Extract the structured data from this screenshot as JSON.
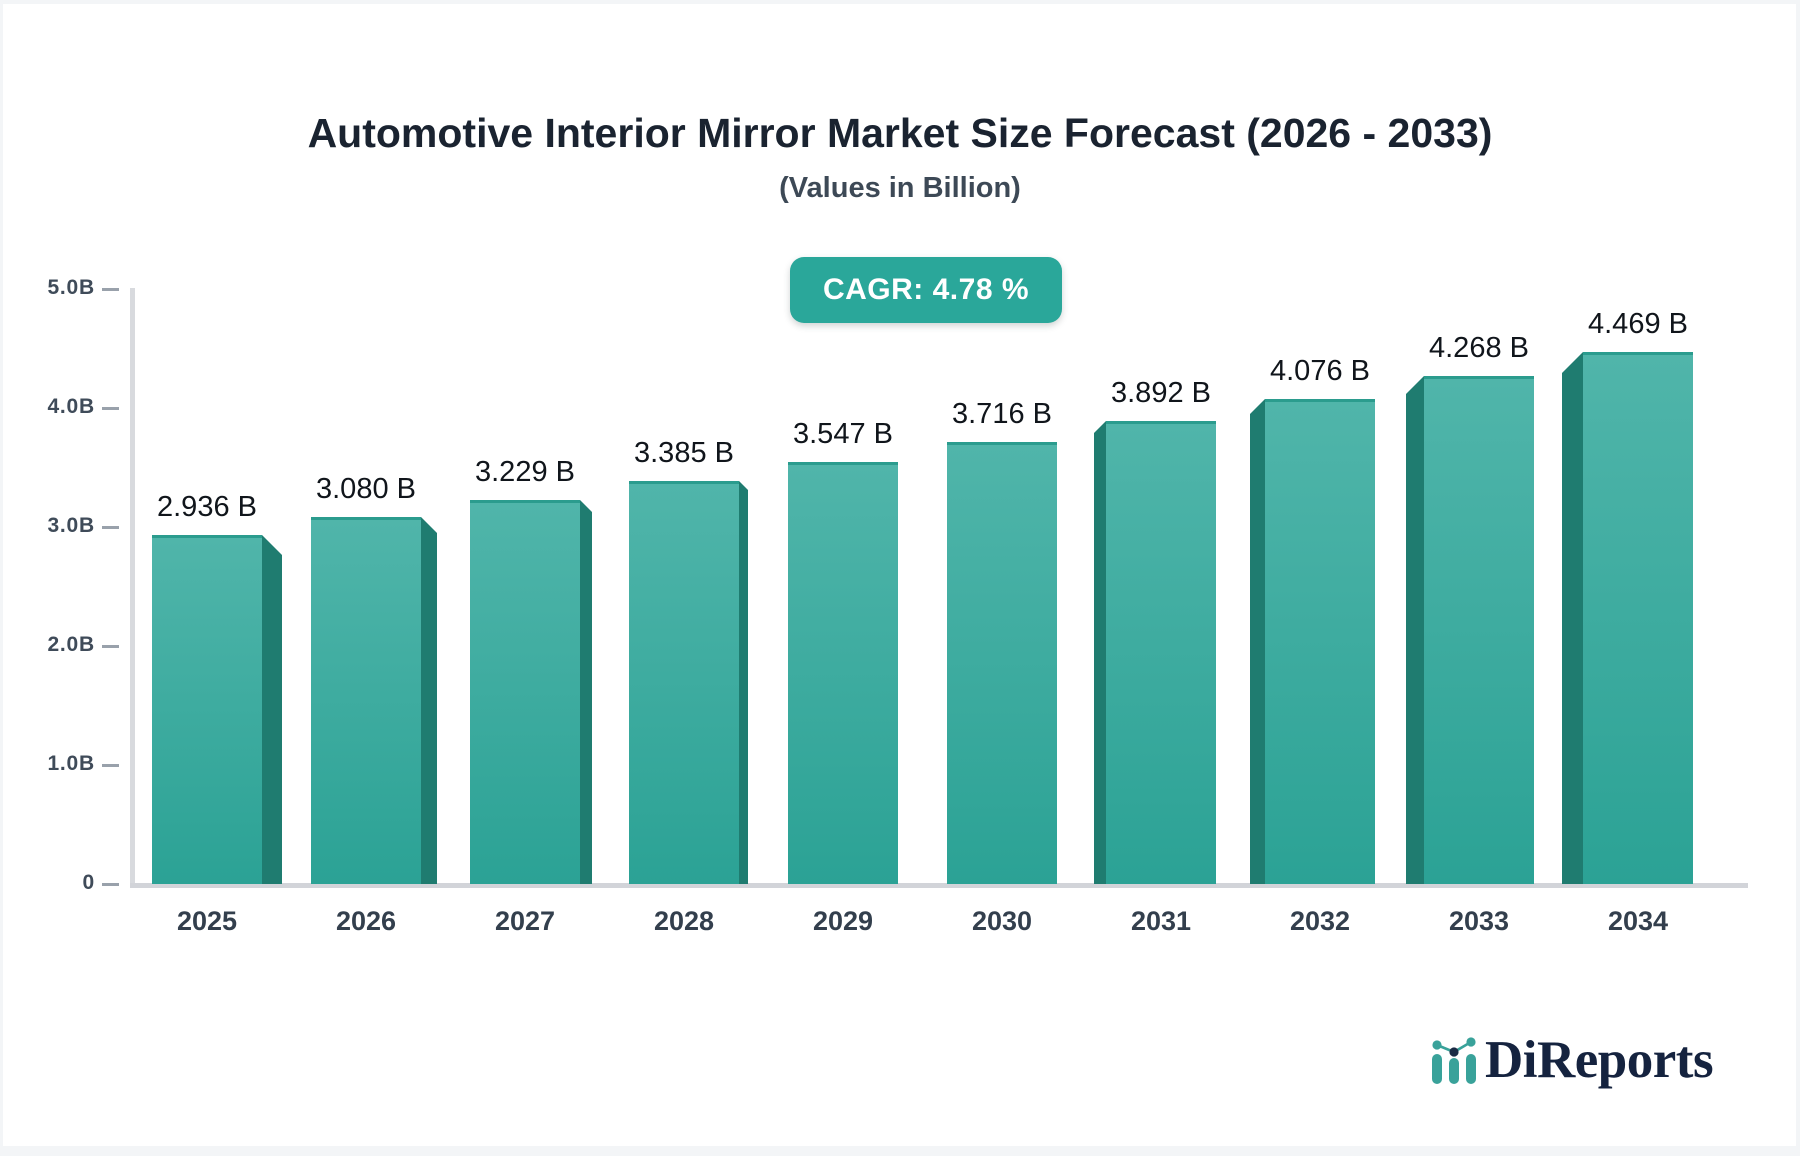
{
  "header": {
    "title": "Automotive Interior Mirror Market Size Forecast (2026 - 2033)",
    "subtitle": "(Values in Billion)"
  },
  "badge": {
    "label": "CAGR: 4.78 %"
  },
  "chart_data": {
    "type": "bar",
    "title": "Automotive Interior Mirror Market Size Forecast (2026 - 2033)",
    "subtitle": "(Values in Billion)",
    "unit": "Billion",
    "cagr_percent": 4.78,
    "categories": [
      "2025",
      "2026",
      "2027",
      "2028",
      "2029",
      "2030",
      "2031",
      "2032",
      "2033",
      "2034"
    ],
    "values": [
      2.936,
      3.08,
      3.229,
      3.385,
      3.547,
      3.716,
      3.892,
      4.076,
      4.268,
      4.469
    ],
    "value_labels": [
      "2.936 B",
      "3.080 B",
      "3.229 B",
      "3.385 B",
      "3.547 B",
      "3.716 B",
      "3.892 B",
      "4.076 B",
      "4.268 B",
      "4.469 B"
    ],
    "ylim": [
      0,
      5.0
    ],
    "y_ticks": [
      {
        "value": 5.0,
        "label": "5.0B"
      },
      {
        "value": 4.0,
        "label": "4.0B"
      },
      {
        "value": 3.0,
        "label": "3.0B"
      },
      {
        "value": 2.0,
        "label": "2.0B"
      },
      {
        "value": 1.0,
        "label": "1.0B"
      },
      {
        "value": 0.0,
        "label": "0"
      }
    ],
    "grid": false,
    "legend": null,
    "bar_style_3d": {
      "sides": [
        "right",
        "right",
        "right",
        "right",
        "none",
        "none",
        "left",
        "left",
        "left",
        "left"
      ],
      "bevel_widths": [
        20,
        16,
        12,
        9,
        0,
        0,
        12,
        15,
        18,
        21
      ]
    },
    "colors": {
      "bar_face_top": "#50b5aa",
      "bar_face_bottom": "#2ba295",
      "bar_side": "#1f7c70",
      "bar_top_edge": "#2b9c8e",
      "badge_background": "#2aa79a",
      "badge_text": "#ffffff",
      "axis_line": "#d8dade",
      "tick_dash": "#99a1ab",
      "y_label": "#3f4b59",
      "x_label": "#333f4d",
      "value_label": "#10151b",
      "title": "#1a2330",
      "subtitle": "#3d4956"
    }
  },
  "branding": {
    "logo_text": "DiReports",
    "logo_icon": "mini-bar-chart-icon",
    "logo_text_color": "#15233f",
    "logo_icon_teal": "#39a29a",
    "logo_icon_navy": "#1b2b45"
  }
}
